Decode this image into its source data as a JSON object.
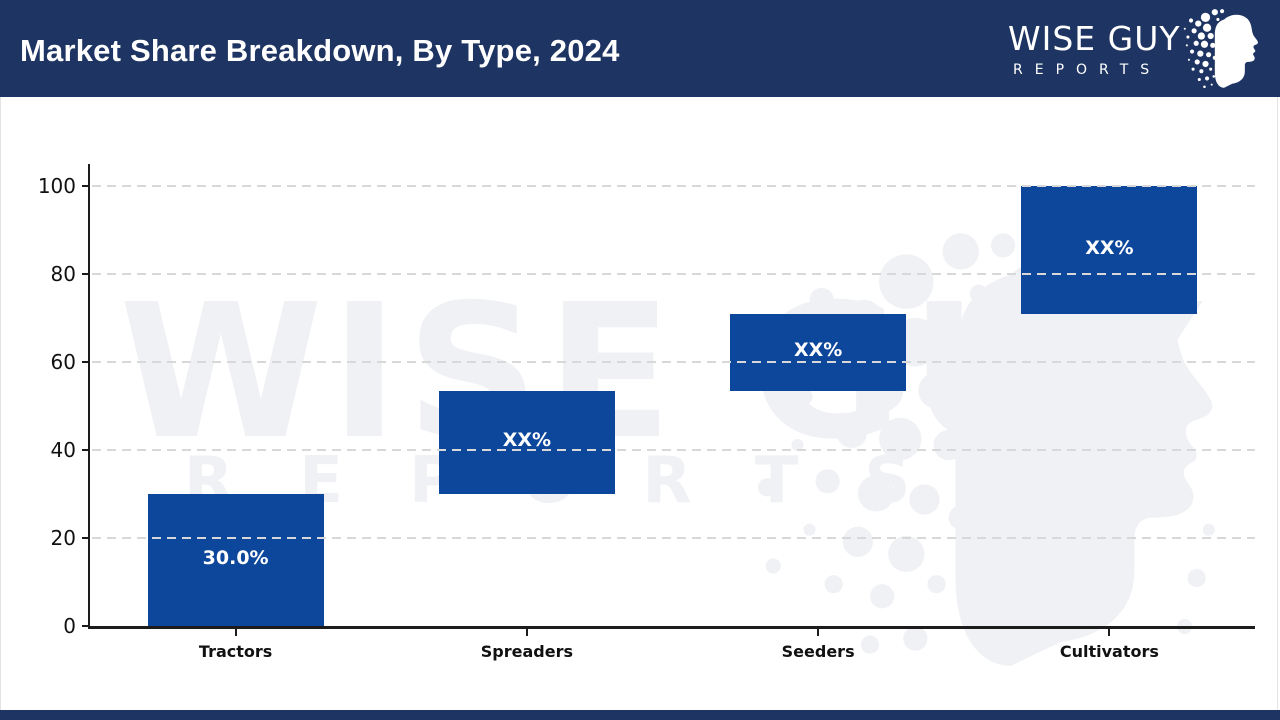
{
  "header": {
    "title": "Market Share Breakdown, By Type, 2024",
    "logo": {
      "line1": "WISE GUY",
      "line2": "REPORTS"
    }
  },
  "watermark": {
    "line1": "WISE GUY",
    "line2": "REPORTS"
  },
  "chart_data": {
    "type": "bar",
    "subtype": "floating-segment-waterfall",
    "title": "Market Share Breakdown, By Type, 2024",
    "categories": [
      "Tractors",
      "Spreaders",
      "Seeders",
      "Cultivators"
    ],
    "segments": [
      {
        "category": "Tractors",
        "start": 0,
        "end": 30,
        "label": "30.0%"
      },
      {
        "category": "Spreaders",
        "start": 30,
        "end": 53.5,
        "label": "XX%"
      },
      {
        "category": "Seeders",
        "start": 53.5,
        "end": 71,
        "label": "XX%"
      },
      {
        "category": "Cultivators",
        "start": 71,
        "end": 100,
        "label": "XX%"
      }
    ],
    "xlabel": "",
    "ylabel": "",
    "ylim": [
      0,
      105
    ],
    "yticks": [
      0,
      20,
      40,
      60,
      80,
      100
    ],
    "grid": "horizontal-dashed",
    "legend": "none",
    "bar_color": "#0c479c",
    "bar_label_color": "#ffffff",
    "accent_navy": "#1e3462",
    "grid_color": "#d8d8d8",
    "watermark_color": "#f0f1f4"
  }
}
